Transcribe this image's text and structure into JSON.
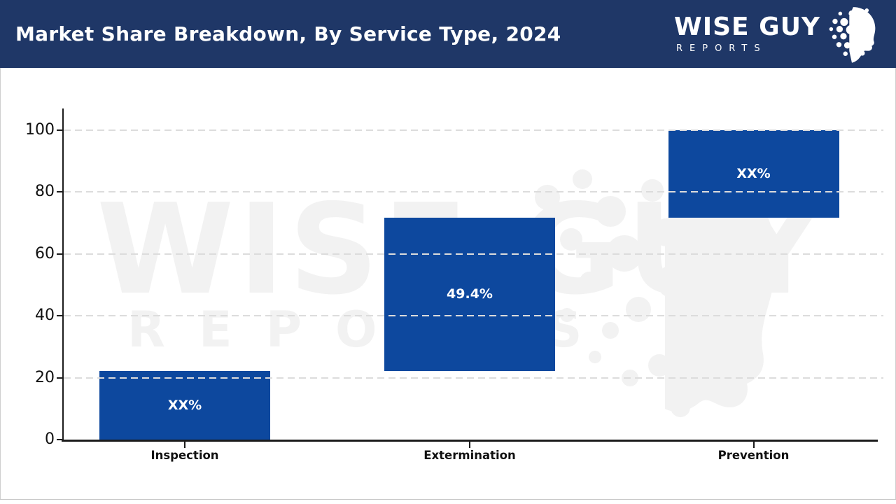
{
  "header": {
    "title": "Market Share Breakdown, By Service Type, 2024",
    "logo": {
      "line1": "WISE GUY",
      "line2": "REPORTS"
    }
  },
  "watermark": {
    "line1": "WISE GUY",
    "line2": "REPORTS"
  },
  "colors": {
    "header_bg": "#1f3767",
    "bar": "#0d489e",
    "grid": "#dcdcdc",
    "axis": "#1c1c1c",
    "watermark": "#f2f2f2",
    "bar_label": "#ffffff"
  },
  "chart_data": {
    "type": "bar",
    "subtype": "waterfall",
    "title": "Market Share Breakdown, By Service Type, 2024",
    "categories": [
      "Inspection",
      "Extermination",
      "Prevention"
    ],
    "bars": [
      {
        "category": "Inspection",
        "start": 0,
        "end": 22.2,
        "label": "XX%"
      },
      {
        "category": "Extermination",
        "start": 22.2,
        "end": 71.6,
        "label": "49.4%",
        "value": 49.4
      },
      {
        "category": "Prevention",
        "start": 71.6,
        "end": 100,
        "label": "XX%"
      }
    ],
    "yticks": [
      0,
      20,
      40,
      60,
      80,
      100
    ],
    "ylim": [
      0,
      107
    ],
    "xlabel": "",
    "ylabel": "",
    "grid": "horizontal-dashed",
    "legend": "none",
    "bar_color": "#0d489e",
    "label_color": "#ffffff"
  }
}
